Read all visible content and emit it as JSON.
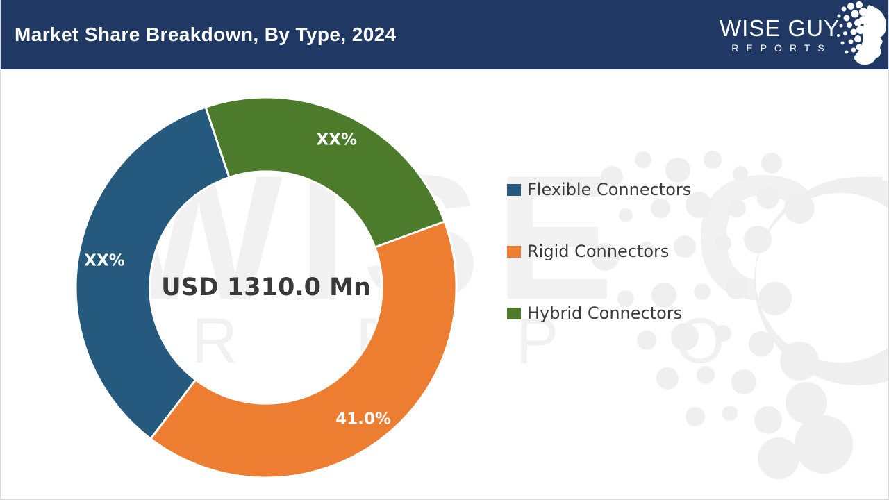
{
  "header": {
    "title": "Market Share Breakdown, By Type, 2024",
    "bg_color": "#203864",
    "logo_line1": "WISE GUY",
    "logo_line2": "REPORTS"
  },
  "watermark": {
    "line1": "WISE GUY",
    "line2": "R E P O R T S"
  },
  "chart_data": {
    "type": "pie",
    "subtype": "donut",
    "title": "Market Share Breakdown, By Type, 2024",
    "center_label": "USD 1310.0 Mn",
    "start_angle_deg": 108.5,
    "direction": "counterclockwise",
    "inner_radius_ratio": 0.61,
    "label_radius_ratio": 0.86,
    "gap_color": "#ffffff",
    "legend_position": "right",
    "series": [
      {
        "name": "Flexible Connectors",
        "label": "XX%",
        "value_pct": 34.5,
        "color": "#255a7e"
      },
      {
        "name": "Rigid Connectors",
        "label": "41.0%",
        "value_pct": 41.0,
        "color": "#ed7d31"
      },
      {
        "name": "Hybrid Connectors",
        "label": "XX%",
        "value_pct": 24.5,
        "color": "#4b7b2b"
      }
    ]
  },
  "colors": {
    "header_bg": "#203864",
    "text_dark": "#3a3a3a",
    "watermark_gray": "#f0f0f0",
    "border_gray": "#d9d9d9",
    "title_text": "#ffffff"
  }
}
